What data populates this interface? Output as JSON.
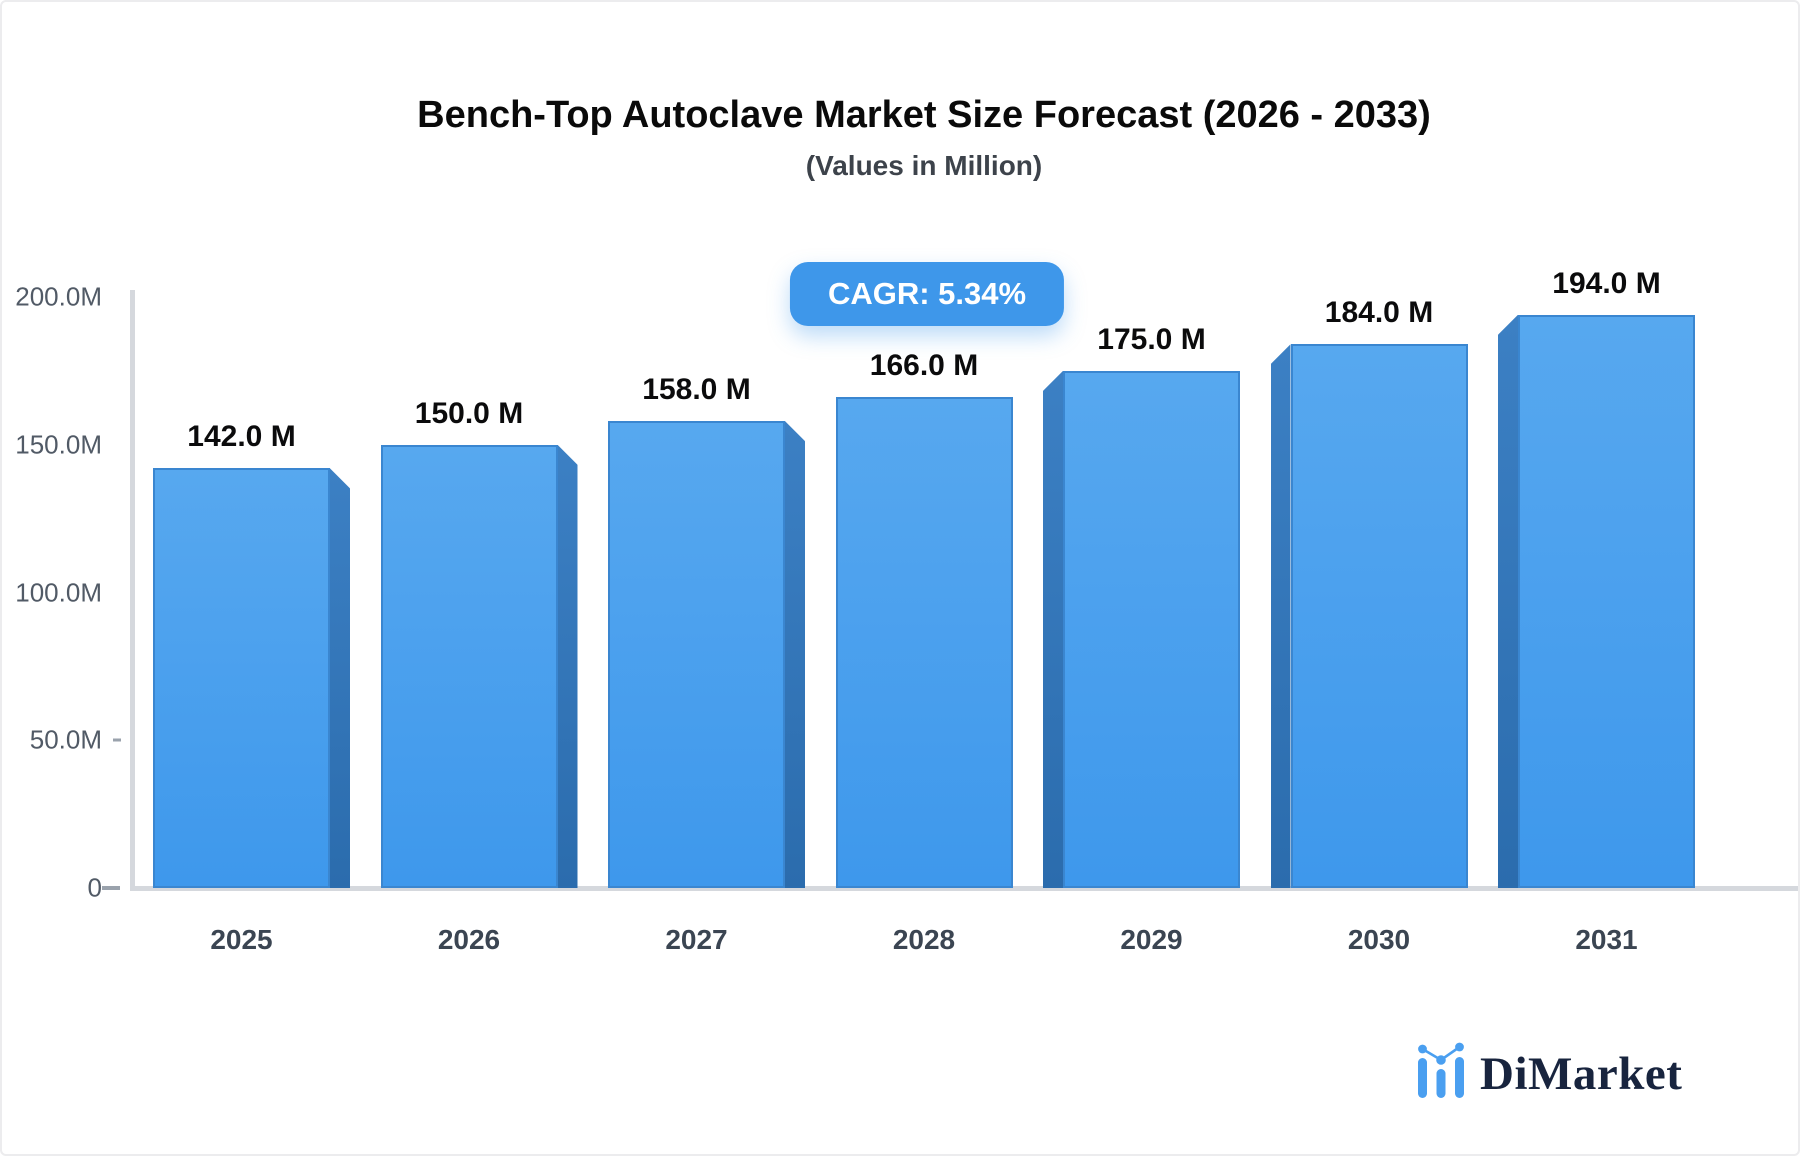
{
  "title": "Bench-Top Autoclave Market Size Forecast (2026 - 2033)",
  "subtitle": "(Values in Million)",
  "badge": {
    "label": "CAGR: 5.34%"
  },
  "logo": {
    "text": "DiMarket",
    "icon": "bar-chart-logo-icon",
    "icon_color": "#4a9ff0",
    "text_color": "#18243e"
  },
  "colors": {
    "bar_face_top": "#57a8ef",
    "bar_face_bottom": "#3e98ec",
    "bar_face_border": "#3a86d0",
    "bar_side": "#2f73b4",
    "badge_bg": "#3e97ea",
    "axis_line": "#d5d8dd",
    "y_label": "#515a66",
    "x_label": "#3b4552",
    "value_label": "#0b0b0c"
  },
  "chart_data": {
    "type": "bar",
    "title": "Bench-Top Autoclave Market Size Forecast (2026 - 2033)",
    "subtitle": "(Values in Million)",
    "categories": [
      "2025",
      "2026",
      "2027",
      "2028",
      "2029",
      "2030",
      "2031"
    ],
    "values": [
      142,
      150,
      158,
      166,
      175,
      184,
      194
    ],
    "bar_labels": [
      "142.0 M",
      "150.0 M",
      "158.0 M",
      "166.0 M",
      "175.0 M",
      "184.0 M",
      "194.0 M"
    ],
    "unit": "M",
    "xlabel": "",
    "ylabel": "",
    "ylim": [
      0,
      200
    ],
    "grid": false,
    "legend": "none",
    "style": "3d-perspective-bars",
    "y_ticks": [
      {
        "label": "200.0M",
        "value": 200,
        "dash": false
      },
      {
        "label": "150.0M",
        "value": 150,
        "dash": false
      },
      {
        "label": "100.0M",
        "value": 100,
        "dash": false
      },
      {
        "label": "50.0M",
        "value": 50,
        "dash": true
      },
      {
        "label": "0",
        "value": 0,
        "dash": true
      }
    ]
  }
}
